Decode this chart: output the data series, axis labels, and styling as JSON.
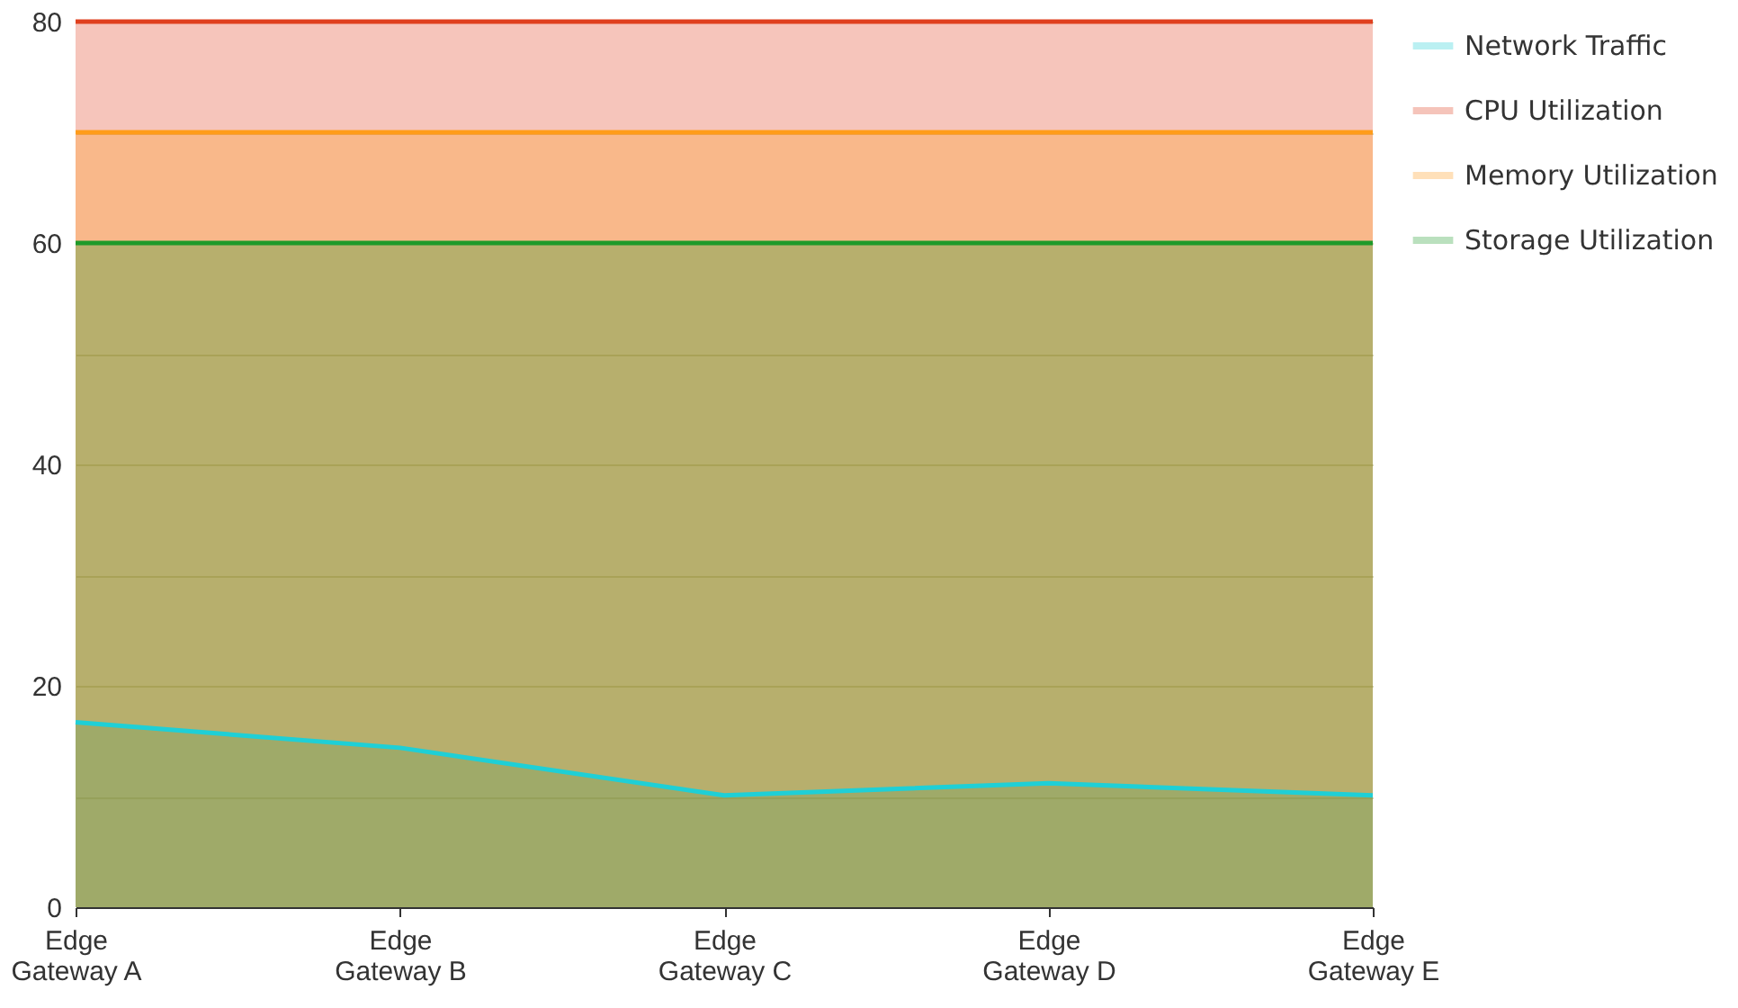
{
  "chart_data": {
    "type": "area",
    "categories": [
      "Edge Gateway A",
      "Edge Gateway B",
      "Edge Gateway C",
      "Edge Gateway D",
      "Edge Gateway E"
    ],
    "series": [
      {
        "name": "Network Traffic",
        "color": "#1fcfd6",
        "values": [
          16.7,
          14.4,
          10.1,
          11.2,
          10.1
        ]
      },
      {
        "name": "CPU Utilization",
        "color": "#e0401e",
        "values": [
          80,
          80,
          80,
          80,
          80
        ]
      },
      {
        "name": "Memory Utilization",
        "color": "#ff9c1a",
        "values": [
          70,
          70,
          70,
          70,
          70
        ]
      },
      {
        "name": "Storage Utilization",
        "color": "#1e9a2a",
        "values": [
          60,
          60,
          60,
          60,
          60
        ]
      }
    ],
    "ylim": [
      0,
      80
    ],
    "yticks": [
      0,
      {
        "value": 10,
        "label": null
      },
      20,
      {
        "value": 30,
        "label": null
      },
      40,
      {
        "value": 50,
        "label": null
      },
      60,
      {
        "value": 70,
        "label": null
      },
      80
    ],
    "grid": "y",
    "legend": "right"
  }
}
